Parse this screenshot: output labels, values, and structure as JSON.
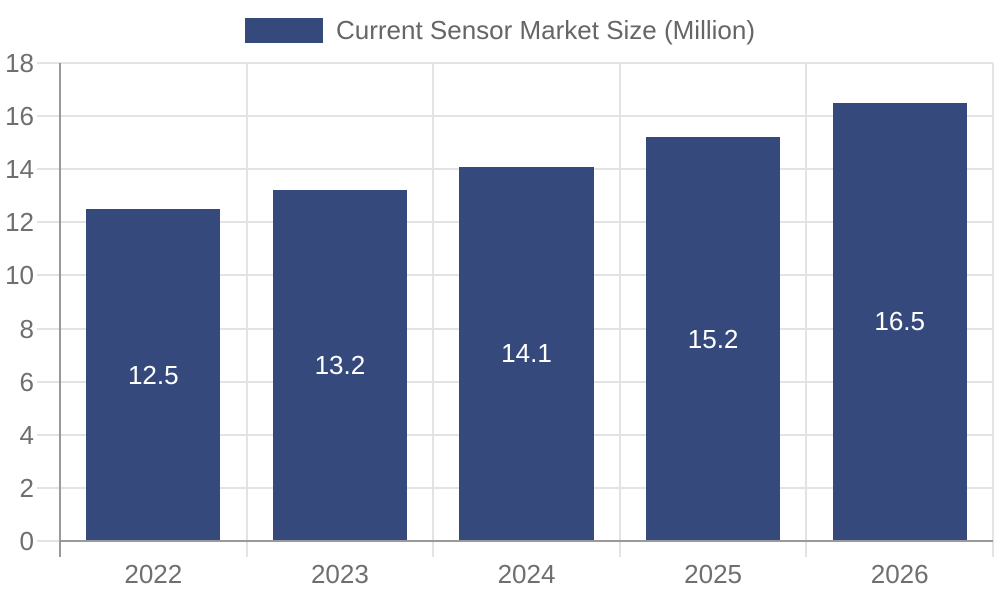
{
  "chart_data": {
    "type": "bar",
    "title": "",
    "legend_label": "Current Sensor Market Size (Million)",
    "legend_position": "top",
    "categories": [
      "2022",
      "2023",
      "2024",
      "2025",
      "2026"
    ],
    "values": [
      12.5,
      13.2,
      14.1,
      15.2,
      16.5
    ],
    "value_labels": [
      "12.5",
      "13.2",
      "14.1",
      "15.2",
      "16.5"
    ],
    "xlabel": "",
    "ylabel": "",
    "ylim": [
      0,
      18
    ],
    "ytick_step": 2,
    "yticks": [
      0,
      2,
      4,
      6,
      8,
      10,
      12,
      14,
      16,
      18
    ],
    "grid": true,
    "colors": {
      "bar": "#36497D",
      "grid": "#e3e3e3",
      "axis": "#999999",
      "tick_label": "#6f6f6f",
      "legend_text": "#666666",
      "value_label": "#ffffff",
      "background": "#ffffff"
    }
  }
}
